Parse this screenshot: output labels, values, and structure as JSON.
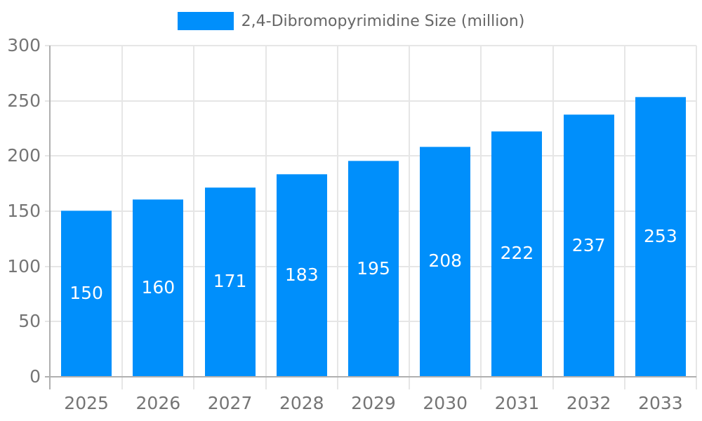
{
  "chart_data": {
    "type": "bar",
    "title": "",
    "legend": {
      "label": "2,4-Dibromopyrimidine Size (million)",
      "position": "top"
    },
    "categories": [
      "2025",
      "2026",
      "2027",
      "2028",
      "2029",
      "2030",
      "2031",
      "2032",
      "2033"
    ],
    "series": [
      {
        "name": "2,4-Dibromopyrimidine Size (million)",
        "values": [
          150,
          160,
          171,
          183,
          195,
          208,
          222,
          237,
          253
        ]
      }
    ],
    "xlabel": "",
    "ylabel": "",
    "ylim": [
      0,
      300
    ],
    "yticks": [
      0,
      50,
      100,
      150,
      200,
      250,
      300
    ],
    "grid": true,
    "bar_label_position": "inside-center",
    "colors": {
      "bar": "#008FFB",
      "bar_label": "#FFFFFF",
      "axis_text": "#757575",
      "legend_text": "#666666",
      "gridline": "#E6E6E6",
      "axis_line": "#B0B0B0"
    }
  }
}
